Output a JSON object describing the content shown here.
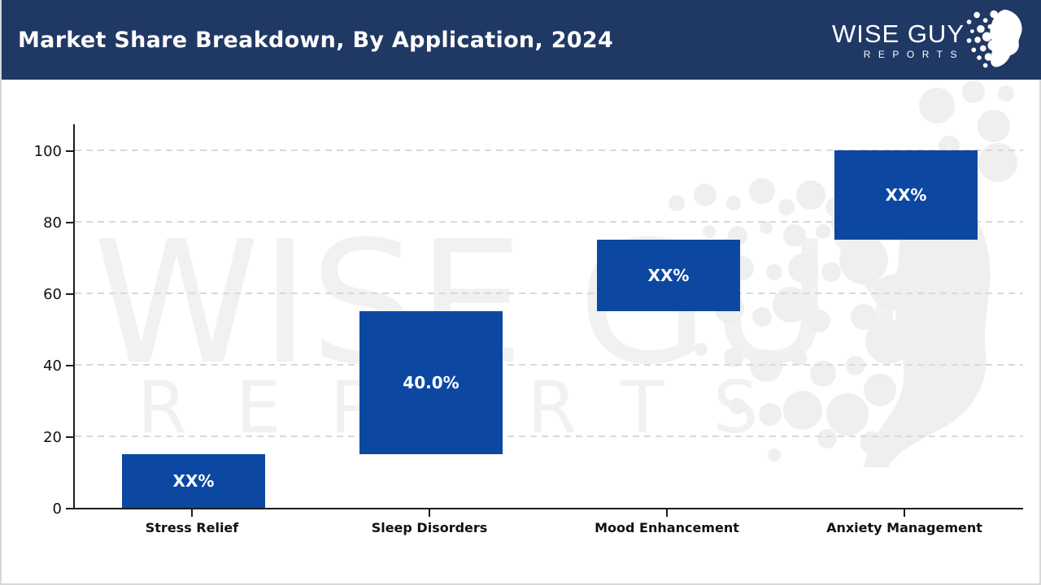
{
  "header": {
    "title": "Market Share Breakdown, By Application, 2024",
    "brand_line1": "WISE GUY",
    "brand_line2": "REPORTS"
  },
  "watermark": {
    "line1": "WISE GUY",
    "line2": "REPORTS"
  },
  "chart_data": {
    "type": "bar",
    "variant": "floating-waterfall",
    "title": "Market Share Breakdown, By Application, 2024",
    "categories": [
      "Stress Relief",
      "Sleep Disorders",
      "Mood Enhancement",
      "Anxiety Management"
    ],
    "bars": [
      {
        "category": "Stress Relief",
        "base": 0,
        "top": 15,
        "label": "XX%"
      },
      {
        "category": "Sleep Disorders",
        "base": 15,
        "top": 55,
        "label": "40.0%"
      },
      {
        "category": "Mood Enhancement",
        "base": 55,
        "top": 75,
        "label": "XX%"
      },
      {
        "category": "Anxiety Management",
        "base": 75,
        "top": 100,
        "label": "XX%"
      }
    ],
    "ylim": [
      0,
      100
    ],
    "yticks": [
      0,
      20,
      40,
      60,
      80,
      100
    ],
    "xlabel": "",
    "ylabel": "",
    "grid": "dashed-horizontal",
    "legend": "none",
    "bar_color": "#0c48a1",
    "header_bg": "#203864",
    "axis_color": "#1c1c1c",
    "grid_color": "#d9d9d9",
    "watermark_color": "#f1f1f1"
  }
}
